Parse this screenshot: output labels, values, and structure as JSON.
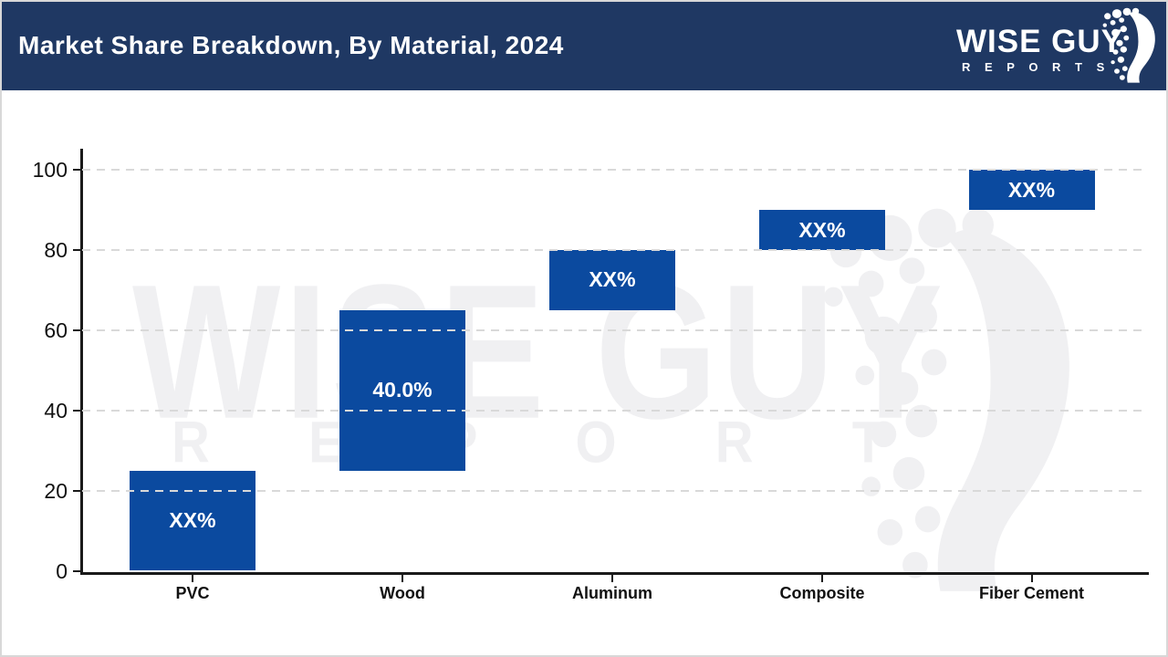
{
  "header": {
    "title": "Market Share Breakdown, By Material, 2024",
    "logo": {
      "line1": "WISE GUY",
      "line2": "R E P O R T S"
    }
  },
  "watermark": {
    "line1": "WISE GUY",
    "line2": "R E P O R T S"
  },
  "chart_data": {
    "type": "bar",
    "subtype": "waterfall",
    "title": "Market Share Breakdown, By Material, 2024",
    "categories": [
      "PVC",
      "Wood",
      "Aluminum",
      "Composite",
      "Fiber Cement"
    ],
    "series": [
      {
        "category": "PVC",
        "start": 0,
        "end": 25,
        "label": "XX%"
      },
      {
        "category": "Wood",
        "start": 25,
        "end": 65,
        "label": "40.0%"
      },
      {
        "category": "Aluminum",
        "start": 65,
        "end": 80,
        "label": "XX%"
      },
      {
        "category": "Composite",
        "start": 80,
        "end": 90,
        "label": "XX%"
      },
      {
        "category": "Fiber Cement",
        "start": 90,
        "end": 100,
        "label": "XX%"
      }
    ],
    "yticks": [
      0,
      20,
      40,
      60,
      80,
      100
    ],
    "ylim": [
      0,
      105
    ],
    "xlabel": "",
    "ylabel": "",
    "grid": "horizontal-dashed",
    "legend": "none"
  },
  "colors": {
    "header_bg": "#1F3863",
    "bar": "#0B4A9F",
    "grid": "#D9D9D9",
    "axis": "#1A1A1A",
    "text": "#111111",
    "watermark": "#F0F0F2",
    "border": "#D8D8D8"
  }
}
